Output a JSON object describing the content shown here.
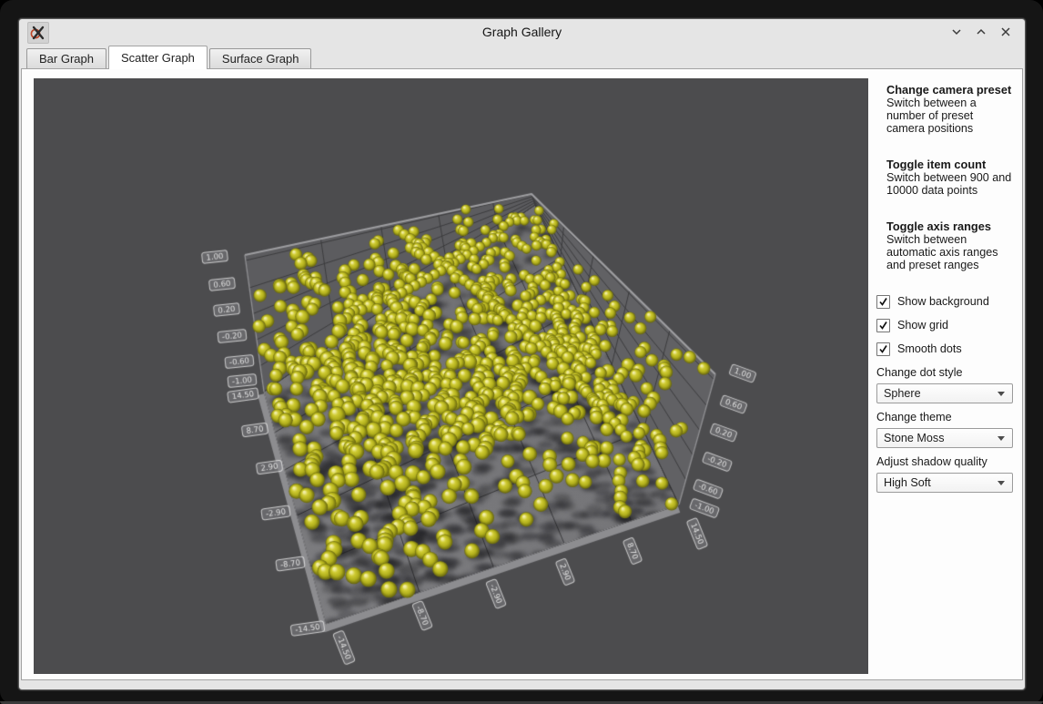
{
  "window": {
    "title": "Graph Gallery",
    "icons": {
      "app": "x11-app",
      "minimize": "chevron-down",
      "maximize": "chevron-up",
      "close": "x"
    }
  },
  "tabs": [
    {
      "label": "Bar Graph",
      "active": false
    },
    {
      "label": "Scatter Graph",
      "active": true
    },
    {
      "label": "Surface Graph",
      "active": false
    }
  ],
  "panel": {
    "buttons": [
      {
        "title": "Change camera preset",
        "description": "Switch between a\nnumber of preset\ncamera positions"
      },
      {
        "title": "Toggle item count",
        "description": "Switch between 900 and\n10000 data points"
      },
      {
        "title": "Toggle axis ranges",
        "description": "Switch between\nautomatic axis ranges\nand preset ranges"
      }
    ],
    "checkboxes": [
      {
        "label": "Show background",
        "checked": true
      },
      {
        "label": "Show grid",
        "checked": true
      },
      {
        "label": "Smooth dots",
        "checked": true
      }
    ],
    "selects": [
      {
        "label": "Change dot style",
        "value": "Sphere"
      },
      {
        "label": "Change theme",
        "value": "Stone Moss"
      },
      {
        "label": "Adjust shadow quality",
        "value": "High Soft"
      }
    ]
  },
  "chart_data": {
    "type": "scatter",
    "projection": "3d",
    "item_count": 900,
    "dot_style": "Sphere",
    "theme": "Stone Moss",
    "shadow_quality": "High Soft",
    "show_background": true,
    "show_grid": true,
    "smooth_dots": true,
    "axes": {
      "x": {
        "range": [
          -14.5,
          14.5
        ],
        "ticks": [
          "-14.50",
          "-8.70",
          "-2.90",
          "2.90",
          "8.70",
          "14.50"
        ]
      },
      "y": {
        "range": [
          -1.0,
          1.0
        ],
        "ticks": [
          "-1.00",
          "-0.60",
          "-0.20",
          "0.20",
          "0.60",
          "1.00"
        ]
      },
      "z": {
        "range": [
          -14.5,
          14.5
        ],
        "ticks": [
          "-14.50",
          "-8.70",
          "-2.90",
          "2.90",
          "8.70",
          "14.50"
        ]
      }
    },
    "colors": {
      "dot": "#b5b31b",
      "background": "#4c4c4e",
      "floor": "#77777a",
      "grid": "#3b3b3d",
      "tick_label_text": "#e2e2e2"
    }
  }
}
